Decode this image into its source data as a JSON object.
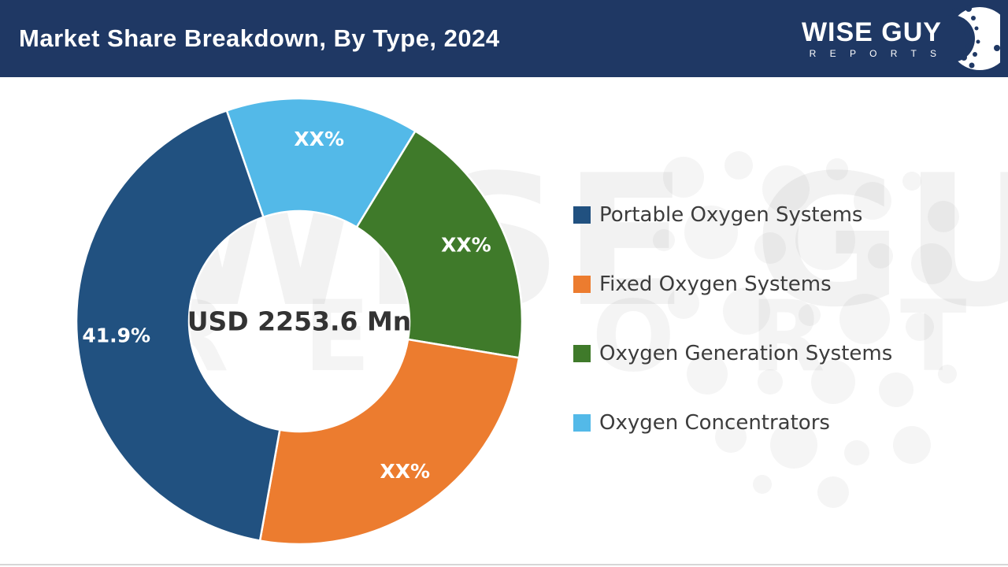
{
  "header": {
    "title": "Market Share Breakdown, By Type, 2024",
    "bg_color": "#1f3864",
    "logo": {
      "line1": "WISE GUY",
      "line2": "R E P O R T S"
    }
  },
  "watermark": {
    "line1": "WISE GUY",
    "line2": "R E P O R T S"
  },
  "chart_data": {
    "type": "pie",
    "subtype": "donut",
    "title": "Market Share Breakdown, By Type, 2024",
    "center_label": "USD 2253.6 Mn",
    "units": "percent share",
    "start_angle_deg": -19,
    "slices": [
      {
        "name": "Oxygen Concentrators",
        "value_pct": 14.0,
        "label": "XX%",
        "color": "#53b9e8"
      },
      {
        "name": "Oxygen Generation Systems",
        "value_pct": 18.9,
        "label": "XX%",
        "color": "#3f7a2a"
      },
      {
        "name": "Fixed Oxygen Systems",
        "value_pct": 25.2,
        "label": "XX%",
        "color": "#ec7c2f"
      },
      {
        "name": "Portable Oxygen Systems",
        "value_pct": 41.9,
        "label": "41.9%",
        "color": "#215180"
      }
    ],
    "legend": [
      {
        "name": "Portable Oxygen Systems",
        "color": "#215180"
      },
      {
        "name": "Fixed Oxygen Systems",
        "color": "#ec7c2f"
      },
      {
        "name": "Oxygen Generation Systems",
        "color": "#3f7a2a"
      },
      {
        "name": "Oxygen Concentrators",
        "color": "#53b9e8"
      }
    ],
    "legend_position": "right",
    "label_color": "#ffffff",
    "center_label_color": "#333333"
  }
}
